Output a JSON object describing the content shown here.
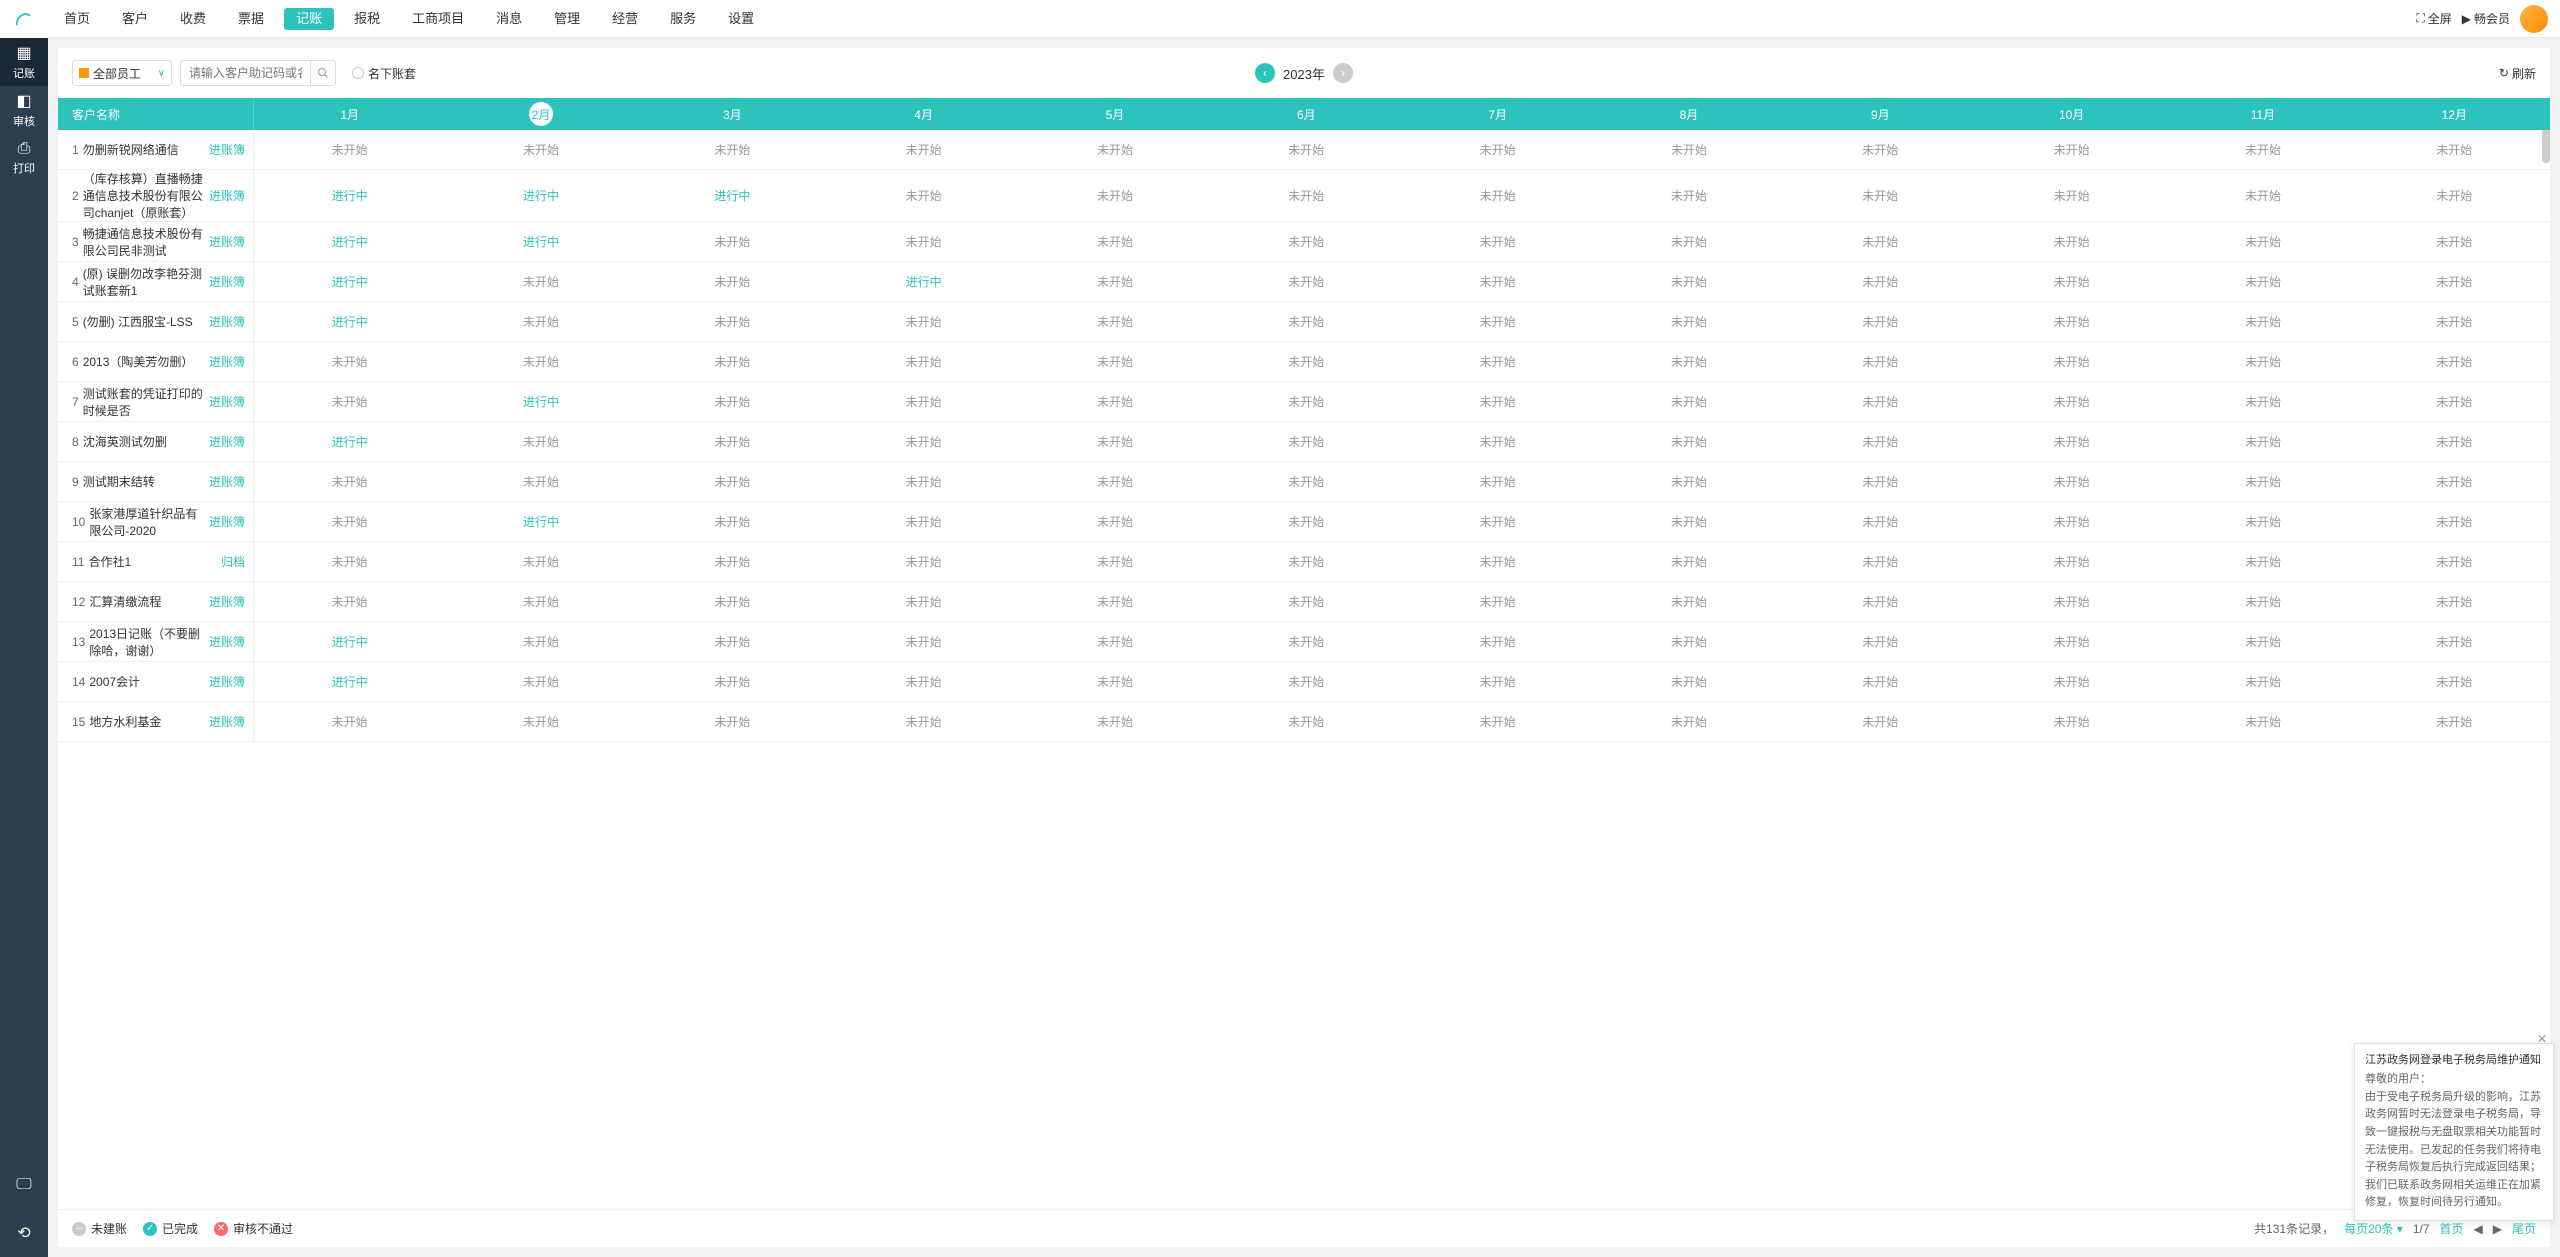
{
  "topNav": {
    "items": [
      "首页",
      "客户",
      "收费",
      "票据",
      "记账",
      "报税",
      "工商项目",
      "消息",
      "管理",
      "经营",
      "服务",
      "设置"
    ],
    "activeIndex": 4
  },
  "topRight": {
    "fullscreen": "全屏",
    "member": "畅会员"
  },
  "leftNav": {
    "items": [
      {
        "icon": "▦",
        "label": "记账"
      },
      {
        "icon": "◧",
        "label": "审核"
      },
      {
        "icon": "⎙",
        "label": "打印"
      }
    ],
    "bottom": [
      {
        "icon": "🖵",
        "label": ""
      },
      {
        "icon": "⟲",
        "label": ""
      }
    ]
  },
  "toolbar": {
    "selectLabel": "全部员工",
    "searchPlaceholder": "请输入客户助记码或名称",
    "checkboxLabel": "名下账套",
    "year": "2023年",
    "refreshLabel": "刷新"
  },
  "table": {
    "nameHeader": "客户名称",
    "months": [
      "1月",
      "2月",
      "3月",
      "4月",
      "5月",
      "6月",
      "7月",
      "8月",
      "9月",
      "10月",
      "11月",
      "12月"
    ],
    "activeMonthIndex": 1,
    "statusLabels": {
      "not_started": "未开始",
      "in_progress": "进行中"
    },
    "linkLabels": {
      "ledger": "进账簿",
      "archive": "归档"
    },
    "rows": [
      {
        "idx": 1,
        "name": "勿删新锐网络通信",
        "link": "ledger",
        "status": [
          "not_started",
          "not_started",
          "not_started",
          "not_started",
          "not_started",
          "not_started",
          "not_started",
          "not_started",
          "not_started",
          "not_started",
          "not_started",
          "not_started"
        ]
      },
      {
        "idx": 2,
        "name": "（库存核算）直播畅捷通信息技术股份有限公司chanjet（原账套）",
        "link": "ledger",
        "tall": true,
        "status": [
          "in_progress",
          "in_progress",
          "in_progress",
          "not_started",
          "not_started",
          "not_started",
          "not_started",
          "not_started",
          "not_started",
          "not_started",
          "not_started",
          "not_started"
        ]
      },
      {
        "idx": 3,
        "name": "畅捷通信息技术股份有限公司民非测试",
        "link": "ledger",
        "status": [
          "in_progress",
          "in_progress",
          "not_started",
          "not_started",
          "not_started",
          "not_started",
          "not_started",
          "not_started",
          "not_started",
          "not_started",
          "not_started",
          "not_started"
        ]
      },
      {
        "idx": 4,
        "name": "(原) 误删勿改李艳芬测试账套新1",
        "link": "ledger",
        "status": [
          "in_progress",
          "not_started",
          "not_started",
          "in_progress",
          "not_started",
          "not_started",
          "not_started",
          "not_started",
          "not_started",
          "not_started",
          "not_started",
          "not_started"
        ]
      },
      {
        "idx": 5,
        "name": "(勿删) 江西服宝-LSS",
        "link": "ledger",
        "status": [
          "in_progress",
          "not_started",
          "not_started",
          "not_started",
          "not_started",
          "not_started",
          "not_started",
          "not_started",
          "not_started",
          "not_started",
          "not_started",
          "not_started"
        ]
      },
      {
        "idx": 6,
        "name": "2013（陶美芳勿删）",
        "link": "ledger",
        "status": [
          "not_started",
          "not_started",
          "not_started",
          "not_started",
          "not_started",
          "not_started",
          "not_started",
          "not_started",
          "not_started",
          "not_started",
          "not_started",
          "not_started"
        ]
      },
      {
        "idx": 7,
        "name": "测试账套的凭证打印的时候是否",
        "link": "ledger",
        "status": [
          "not_started",
          "in_progress",
          "not_started",
          "not_started",
          "not_started",
          "not_started",
          "not_started",
          "not_started",
          "not_started",
          "not_started",
          "not_started",
          "not_started"
        ]
      },
      {
        "idx": 8,
        "name": "沈海英测试勿删",
        "link": "ledger",
        "status": [
          "in_progress",
          "not_started",
          "not_started",
          "not_started",
          "not_started",
          "not_started",
          "not_started",
          "not_started",
          "not_started",
          "not_started",
          "not_started",
          "not_started"
        ]
      },
      {
        "idx": 9,
        "name": "测试期末结转",
        "link": "ledger",
        "status": [
          "not_started",
          "not_started",
          "not_started",
          "not_started",
          "not_started",
          "not_started",
          "not_started",
          "not_started",
          "not_started",
          "not_started",
          "not_started",
          "not_started"
        ]
      },
      {
        "idx": 10,
        "name": "张家港厚道针织品有限公司-2020",
        "link": "ledger",
        "status": [
          "not_started",
          "in_progress",
          "not_started",
          "not_started",
          "not_started",
          "not_started",
          "not_started",
          "not_started",
          "not_started",
          "not_started",
          "not_started",
          "not_started"
        ]
      },
      {
        "idx": 11,
        "name": "合作社1",
        "link": "archive",
        "status": [
          "not_started",
          "not_started",
          "not_started",
          "not_started",
          "not_started",
          "not_started",
          "not_started",
          "not_started",
          "not_started",
          "not_started",
          "not_started",
          "not_started"
        ]
      },
      {
        "idx": 12,
        "name": "汇算清缴流程",
        "link": "ledger",
        "status": [
          "not_started",
          "not_started",
          "not_started",
          "not_started",
          "not_started",
          "not_started",
          "not_started",
          "not_started",
          "not_started",
          "not_started",
          "not_started",
          "not_started"
        ]
      },
      {
        "idx": 13,
        "name": "2013日记账（不要删除哈，谢谢）",
        "link": "ledger",
        "status": [
          "in_progress",
          "not_started",
          "not_started",
          "not_started",
          "not_started",
          "not_started",
          "not_started",
          "not_started",
          "not_started",
          "not_started",
          "not_started",
          "not_started"
        ]
      },
      {
        "idx": 14,
        "name": "2007会计",
        "link": "ledger",
        "status": [
          "in_progress",
          "not_started",
          "not_started",
          "not_started",
          "not_started",
          "not_started",
          "not_started",
          "not_started",
          "not_started",
          "not_started",
          "not_started",
          "not_started"
        ]
      },
      {
        "idx": 15,
        "name": "地方水利基金",
        "link": "ledger",
        "status": [
          "not_started",
          "not_started",
          "not_started",
          "not_started",
          "not_started",
          "not_started",
          "not_started",
          "not_started",
          "not_started",
          "not_started",
          "not_started",
          "not_started"
        ]
      }
    ]
  },
  "legend": {
    "notCreated": "未建账",
    "done": "已完成",
    "rejected": "审核不通过"
  },
  "pagination": {
    "total": "共131条记录，",
    "perPage": "每页20条",
    "pageInfo": "1/7",
    "first": "首页",
    "last": "尾页"
  },
  "notification": {
    "title": "江苏政务网登录电子税务局维护通知",
    "greeting": "尊敬的用户：",
    "body": "由于受电子税务局升级的影响，江苏政务网暂时无法登录电子税务局，导致一键报税与无盘取票相关功能暂时无法使用。已发起的任务我们将待电子税务局恢复后执行完成返回结果；我们已联系政务网相关运维正在加紧修复，恢复时间待另行通知。"
  },
  "colors": {
    "primary": "#2dc3bd",
    "sidebar": "#2c3e50",
    "textMuted": "#999",
    "border": "#e8e8e8"
  }
}
